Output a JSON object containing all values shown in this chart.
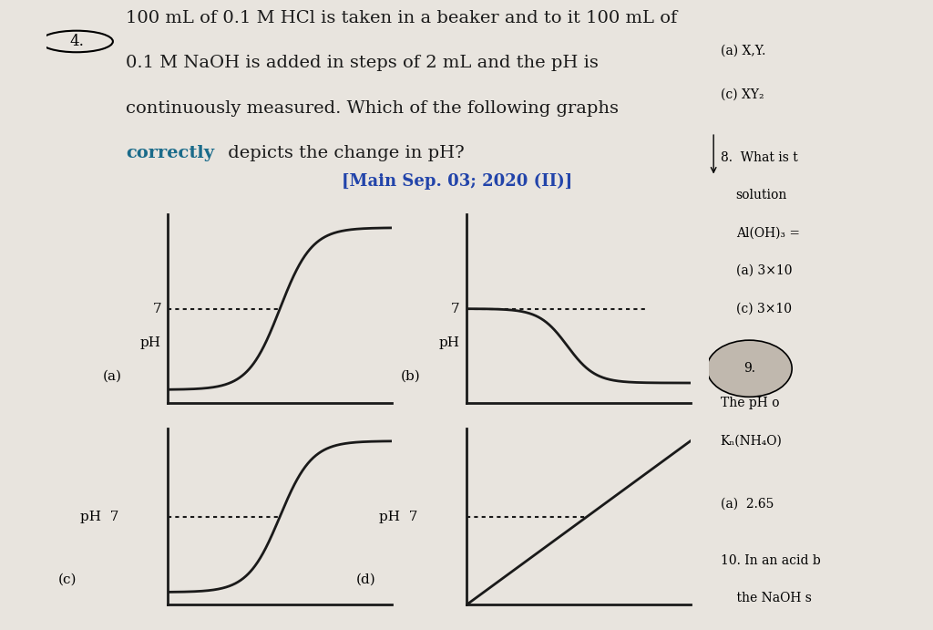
{
  "bg_color": "#e8e4de",
  "text_color": "#1a1a1a",
  "curve_color": "#1a1a1a",
  "dashed_color": "#1a1a1a",
  "axis_color": "#1a1a1a",
  "correctly_color": "#1a6b8a",
  "subtitle_color": "#2244aa",
  "font_size_title": 14,
  "font_size_label": 11,
  "font_size_tick": 11,
  "font_size_small": 10,
  "right_texts": [
    "(a) X,Y.",
    "(c) XY₂",
    "8.   What is t",
    "    solution",
    "    Al(OH)₃ =",
    "    (a) 3×10",
    "    (c) 3×10",
    "9.   The pH o",
    "    Kₙ(NH₄O)",
    "    (a) 2.65",
    "10.  In an acid b",
    "    the NaOH s"
  ]
}
